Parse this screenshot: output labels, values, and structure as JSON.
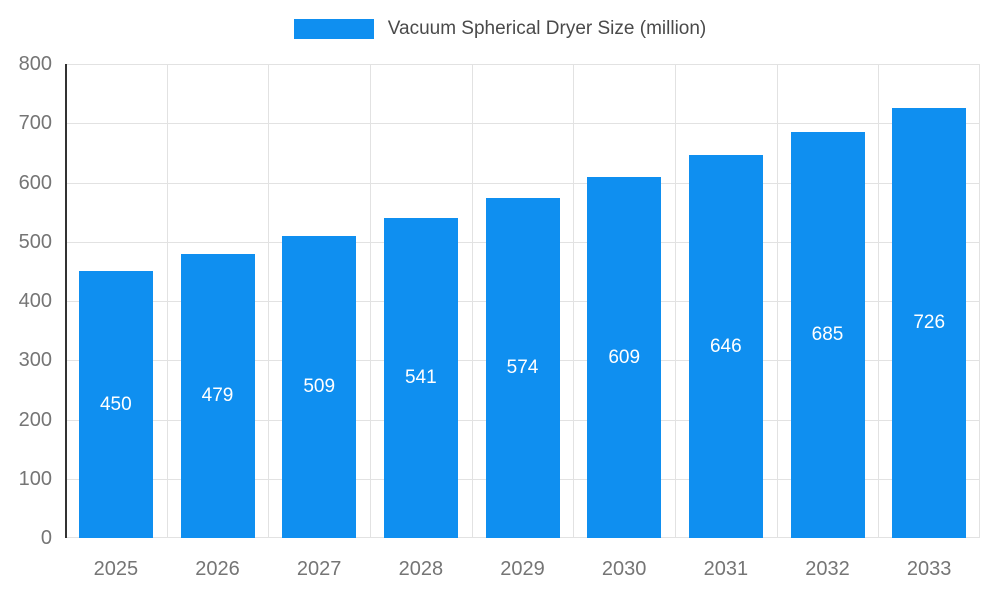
{
  "chart_data": {
    "type": "bar",
    "title": "Vacuum Spherical Dryer Size (million)",
    "categories": [
      "2025",
      "2026",
      "2027",
      "2028",
      "2029",
      "2030",
      "2031",
      "2032",
      "2033"
    ],
    "values": [
      450,
      479,
      509,
      541,
      574,
      609,
      646,
      685,
      726
    ],
    "xlabel": "",
    "ylabel": "",
    "ylim": [
      0,
      800
    ],
    "ytick_step": 100,
    "grid": "on",
    "legend_position": "top-center",
    "bar_color": "#0f8ff0",
    "value_label_color": "#ffffff",
    "axis_label_color": "#757575",
    "grid_color": "#e2e2e2",
    "axis_line_color": "#333333",
    "title_color": "#4a4a4a",
    "background_color": "#ffffff"
  }
}
